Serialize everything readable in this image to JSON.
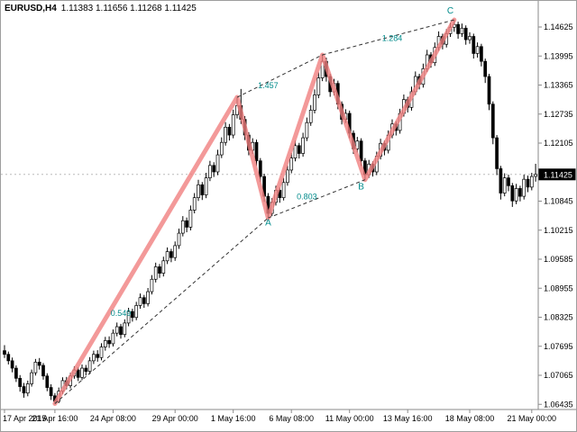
{
  "title": {
    "symbol": "EURUSD,H4",
    "quotes": "1.11383 1.11656 1.11268 1.11425"
  },
  "colors": {
    "background": "#ffffff",
    "axis_line": "#8a8a8a",
    "axis_text": "#000000",
    "candle_border": "#000000",
    "candle_up_fill": "#ffffff",
    "candle_down_fill": "#000000",
    "zigzag": "#f08080",
    "dashed_line": "#333333",
    "pattern_label": "#008b8b",
    "current_price_line": "#bbbbbb",
    "price_badge_bg": "#000000",
    "price_badge_text": "#ffffff"
  },
  "chart_data": {
    "type": "candlestick",
    "symbol": "EURUSD",
    "timeframe": "H4",
    "title": "EURUSD,H4 1.11383 1.11656 1.11268 1.11425",
    "ylim": [
      1.063,
      1.15
    ],
    "grid": "off",
    "legend": "none",
    "current_price": "1.11425",
    "current_price_value": 1.11425,
    "y_tick_labels": [
      "1.14625",
      "1.13995",
      "1.13365",
      "1.12735",
      "1.12105",
      "1.11475",
      "1.10845",
      "1.10215",
      "1.09585",
      "1.08955",
      "1.08325",
      "1.07695",
      "1.07065",
      "1.06435"
    ],
    "x_labels": [
      {
        "label": "17 Apr 2015",
        "bar": 0
      },
      {
        "label": "21 Apr 16:00",
        "bar": 13
      },
      {
        "label": "24 Apr 08:00",
        "bar": 28
      },
      {
        "label": "29 Apr 00:00",
        "bar": 44
      },
      {
        "label": "1 May 16:00",
        "bar": 59
      },
      {
        "label": "6 May 08:00",
        "bar": 74
      },
      {
        "label": "11 May 00:00",
        "bar": 89
      },
      {
        "label": "13 May 16:00",
        "bar": 104
      },
      {
        "label": "18 May 08:00",
        "bar": 120
      },
      {
        "label": "21 May 00:00",
        "bar": 136
      }
    ],
    "bars_ohlc_format": "open,high,low,close",
    "bars_ohlc": [
      [
        1.076,
        1.0772,
        1.0744,
        1.0752
      ],
      [
        1.0752,
        1.0758,
        1.073,
        1.0738
      ],
      [
        1.0738,
        1.0745,
        1.0713,
        1.0722
      ],
      [
        1.0722,
        1.0728,
        1.0692,
        1.07
      ],
      [
        1.07,
        1.0707,
        1.0671,
        1.0682
      ],
      [
        1.0682,
        1.069,
        1.0658,
        1.0668
      ],
      [
        1.0668,
        1.0695,
        1.0661,
        1.0688
      ],
      [
        1.0688,
        1.0719,
        1.0682,
        1.0712
      ],
      [
        1.0712,
        1.0742,
        1.0706,
        1.0735
      ],
      [
        1.0735,
        1.0744,
        1.0719,
        1.0728
      ],
      [
        1.0728,
        1.0733,
        1.0697,
        1.0705
      ],
      [
        1.0705,
        1.0711,
        1.0672,
        1.068
      ],
      [
        1.068,
        1.0687,
        1.0653,
        1.0662
      ],
      [
        1.0662,
        1.0668,
        1.0645,
        1.065
      ],
      [
        1.065,
        1.068,
        1.0646,
        1.0672
      ],
      [
        1.0672,
        1.0702,
        1.0666,
        1.0695
      ],
      [
        1.0695,
        1.0703,
        1.0676,
        1.0684
      ],
      [
        1.0684,
        1.0712,
        1.0678,
        1.0705
      ],
      [
        1.0705,
        1.0726,
        1.0699,
        1.0718
      ],
      [
        1.0718,
        1.0724,
        1.0694,
        1.0702
      ],
      [
        1.0702,
        1.073,
        1.0696,
        1.0722
      ],
      [
        1.0722,
        1.0729,
        1.0706,
        1.0715
      ],
      [
        1.0715,
        1.0746,
        1.0709,
        1.0738
      ],
      [
        1.0738,
        1.076,
        1.0731,
        1.0752
      ],
      [
        1.0752,
        1.0761,
        1.0736,
        1.0745
      ],
      [
        1.0745,
        1.0776,
        1.0739,
        1.0768
      ],
      [
        1.0768,
        1.079,
        1.076,
        1.0782
      ],
      [
        1.0782,
        1.0791,
        1.0766,
        1.0775
      ],
      [
        1.0775,
        1.0806,
        1.0769,
        1.0798
      ],
      [
        1.0798,
        1.0821,
        1.0791,
        1.0812
      ],
      [
        1.0812,
        1.0818,
        1.0786,
        1.0795
      ],
      [
        1.0795,
        1.0828,
        1.0789,
        1.082
      ],
      [
        1.082,
        1.0853,
        1.0813,
        1.0845
      ],
      [
        1.0845,
        1.0851,
        1.0823,
        1.0832
      ],
      [
        1.0832,
        1.0866,
        1.0826,
        1.0858
      ],
      [
        1.0858,
        1.0884,
        1.0851,
        1.0875
      ],
      [
        1.0875,
        1.0881,
        1.0853,
        1.0862
      ],
      [
        1.0862,
        1.0896,
        1.0856,
        1.0888
      ],
      [
        1.0888,
        1.0924,
        1.0882,
        1.0915
      ],
      [
        1.0915,
        1.0951,
        1.0908,
        1.0942
      ],
      [
        1.0942,
        1.0948,
        1.0918,
        1.0928
      ],
      [
        1.0928,
        1.0964,
        1.0921,
        1.0955
      ],
      [
        1.0955,
        1.0984,
        1.0948,
        1.0975
      ],
      [
        1.0975,
        1.0981,
        1.0952,
        1.0962
      ],
      [
        1.0962,
        1.0997,
        1.0955,
        1.0988
      ],
      [
        1.0988,
        1.1025,
        1.0981,
        1.1015
      ],
      [
        1.1015,
        1.1052,
        1.1008,
        1.1042
      ],
      [
        1.1042,
        1.1049,
        1.1017,
        1.1028
      ],
      [
        1.1028,
        1.1075,
        1.1021,
        1.1065
      ],
      [
        1.1065,
        1.1102,
        1.1058,
        1.1092
      ],
      [
        1.1092,
        1.1131,
        1.1085,
        1.112
      ],
      [
        1.112,
        1.1126,
        1.1087,
        1.1098
      ],
      [
        1.1098,
        1.1146,
        1.1091,
        1.1135
      ],
      [
        1.1135,
        1.1172,
        1.1128,
        1.1162
      ],
      [
        1.1162,
        1.1169,
        1.1137,
        1.1148
      ],
      [
        1.1148,
        1.1196,
        1.1141,
        1.1185
      ],
      [
        1.1185,
        1.1223,
        1.1178,
        1.1212
      ],
      [
        1.1212,
        1.1256,
        1.1205,
        1.1245
      ],
      [
        1.1245,
        1.1252,
        1.1216,
        1.1228
      ],
      [
        1.1228,
        1.1283,
        1.1221,
        1.1272
      ],
      [
        1.1272,
        1.131,
        1.1264,
        1.1292
      ],
      [
        1.1292,
        1.1328,
        1.1252,
        1.1262
      ],
      [
        1.1262,
        1.1269,
        1.1217,
        1.1228
      ],
      [
        1.1228,
        1.1234,
        1.1184,
        1.1195
      ],
      [
        1.1195,
        1.1221,
        1.1187,
        1.1212
      ],
      [
        1.1212,
        1.1218,
        1.1161,
        1.1172
      ],
      [
        1.1172,
        1.1178,
        1.1126,
        1.1138
      ],
      [
        1.1138,
        1.1144,
        1.1083,
        1.1095
      ],
      [
        1.1095,
        1.1102,
        1.1048,
        1.1058
      ],
      [
        1.1058,
        1.1091,
        1.1052,
        1.1082
      ],
      [
        1.1082,
        1.1118,
        1.1075,
        1.1108
      ],
      [
        1.1108,
        1.1114,
        1.1081,
        1.1092
      ],
      [
        1.1092,
        1.1135,
        1.1086,
        1.1125
      ],
      [
        1.1125,
        1.1162,
        1.1118,
        1.1152
      ],
      [
        1.1152,
        1.1189,
        1.1145,
        1.1178
      ],
      [
        1.1178,
        1.1216,
        1.1171,
        1.1205
      ],
      [
        1.1205,
        1.1211,
        1.1177,
        1.1188
      ],
      [
        1.1188,
        1.1233,
        1.1181,
        1.1222
      ],
      [
        1.1222,
        1.1266,
        1.1215,
        1.1255
      ],
      [
        1.1255,
        1.1293,
        1.1248,
        1.1282
      ],
      [
        1.1282,
        1.1327,
        1.1275,
        1.1315
      ],
      [
        1.1315,
        1.1364,
        1.1308,
        1.1352
      ],
      [
        1.1352,
        1.1402,
        1.1345,
        1.1388
      ],
      [
        1.1388,
        1.1396,
        1.1344,
        1.1355
      ],
      [
        1.1355,
        1.1361,
        1.1311,
        1.1322
      ],
      [
        1.1322,
        1.135,
        1.1314,
        1.134
      ],
      [
        1.134,
        1.1346,
        1.1284,
        1.1295
      ],
      [
        1.1295,
        1.1301,
        1.1251,
        1.1262
      ],
      [
        1.1262,
        1.1284,
        1.1254,
        1.1275
      ],
      [
        1.1275,
        1.1281,
        1.1221,
        1.1232
      ],
      [
        1.1232,
        1.1238,
        1.1187,
        1.1198
      ],
      [
        1.1198,
        1.1224,
        1.119,
        1.1215
      ],
      [
        1.1215,
        1.1221,
        1.1161,
        1.1172
      ],
      [
        1.1172,
        1.1178,
        1.1131,
        1.1142
      ],
      [
        1.1142,
        1.1174,
        1.1135,
        1.1165
      ],
      [
        1.1165,
        1.1171,
        1.1138,
        1.1148
      ],
      [
        1.1148,
        1.1192,
        1.1141,
        1.1182
      ],
      [
        1.1182,
        1.122,
        1.1175,
        1.121
      ],
      [
        1.121,
        1.1216,
        1.1184,
        1.1195
      ],
      [
        1.1195,
        1.1238,
        1.1188,
        1.1228
      ],
      [
        1.1228,
        1.1262,
        1.1221,
        1.1252
      ],
      [
        1.1252,
        1.1258,
        1.1227,
        1.1238
      ],
      [
        1.1238,
        1.1285,
        1.1231,
        1.1275
      ],
      [
        1.1275,
        1.1316,
        1.1268,
        1.1305
      ],
      [
        1.1305,
        1.1311,
        1.1277,
        1.1288
      ],
      [
        1.1288,
        1.1333,
        1.1281,
        1.1322
      ],
      [
        1.1322,
        1.1366,
        1.1315,
        1.1355
      ],
      [
        1.1355,
        1.1361,
        1.1327,
        1.1338
      ],
      [
        1.1338,
        1.1383,
        1.1331,
        1.1372
      ],
      [
        1.1372,
        1.1413,
        1.1365,
        1.1402
      ],
      [
        1.1402,
        1.1408,
        1.1374,
        1.1385
      ],
      [
        1.1385,
        1.1429,
        1.1378,
        1.1418
      ],
      [
        1.1418,
        1.1453,
        1.1411,
        1.1442
      ],
      [
        1.1442,
        1.1448,
        1.1414,
        1.1425
      ],
      [
        1.1425,
        1.1458,
        1.1418,
        1.1448
      ],
      [
        1.1448,
        1.1472,
        1.1441,
        1.1462
      ],
      [
        1.1462,
        1.1478,
        1.1452,
        1.1468
      ],
      [
        1.1468,
        1.1474,
        1.1437,
        1.1448
      ],
      [
        1.1448,
        1.147,
        1.1441,
        1.146
      ],
      [
        1.146,
        1.1466,
        1.1424,
        1.1435
      ],
      [
        1.1435,
        1.1451,
        1.1426,
        1.1442
      ],
      [
        1.1442,
        1.1448,
        1.1394,
        1.1405
      ],
      [
        1.1405,
        1.1429,
        1.1396,
        1.142
      ],
      [
        1.142,
        1.1426,
        1.1377,
        1.1388
      ],
      [
        1.1388,
        1.1394,
        1.1341,
        1.1355
      ],
      [
        1.1355,
        1.1361,
        1.1282,
        1.1295
      ],
      [
        1.1295,
        1.1301,
        1.1208,
        1.1222
      ],
      [
        1.1222,
        1.1228,
        1.1141,
        1.1155
      ],
      [
        1.1155,
        1.1161,
        1.1088,
        1.1102
      ],
      [
        1.1102,
        1.1145,
        1.1095,
        1.1135
      ],
      [
        1.1135,
        1.1142,
        1.1106,
        1.1118
      ],
      [
        1.1118,
        1.1124,
        1.1072,
        1.1085
      ],
      [
        1.1085,
        1.1122,
        1.1078,
        1.1112
      ],
      [
        1.1112,
        1.1118,
        1.1084,
        1.1095
      ],
      [
        1.1095,
        1.1142,
        1.1088,
        1.1132
      ],
      [
        1.1132,
        1.114,
        1.1104,
        1.1115
      ],
      [
        1.1115,
        1.1146,
        1.1108,
        1.1138
      ],
      [
        1.11383,
        1.11656,
        1.11268,
        1.11425
      ]
    ],
    "overlays": {
      "zigzag_points": [
        {
          "bar": 13,
          "price": 1.0645
        },
        {
          "bar": 60,
          "price": 1.131
        },
        {
          "bar": 68,
          "price": 1.1048
        },
        {
          "bar": 82,
          "price": 1.1402
        },
        {
          "bar": 93,
          "price": 1.1131
        },
        {
          "bar": 116,
          "price": 1.1478
        }
      ],
      "dashed_segments": [
        {
          "from": {
            "bar": 13,
            "price": 1.0645
          },
          "to": {
            "bar": 68,
            "price": 1.1048
          },
          "label": "0.549",
          "label_at": {
            "bar": 30,
            "price": 1.0835
          }
        },
        {
          "from": {
            "bar": 60,
            "price": 1.131
          },
          "to": {
            "bar": 82,
            "price": 1.1402
          },
          "label": "1.457",
          "label_at": {
            "bar": 68,
            "price": 1.133
          }
        },
        {
          "from": {
            "bar": 68,
            "price": 1.1048
          },
          "to": {
            "bar": 93,
            "price": 1.1131
          },
          "label": "0.803",
          "label_at": {
            "bar": 78,
            "price": 1.1088
          }
        },
        {
          "from": {
            "bar": 82,
            "price": 1.1402
          },
          "to": {
            "bar": 116,
            "price": 1.1478
          },
          "label": "1.284",
          "label_at": {
            "bar": 100,
            "price": 1.1432
          }
        }
      ],
      "point_labels": [
        {
          "label": "A",
          "bar": 68,
          "price": 1.1032
        },
        {
          "label": "B",
          "bar": 92,
          "price": 1.111
        },
        {
          "label": "C",
          "bar": 115,
          "price": 1.1492
        }
      ]
    }
  }
}
